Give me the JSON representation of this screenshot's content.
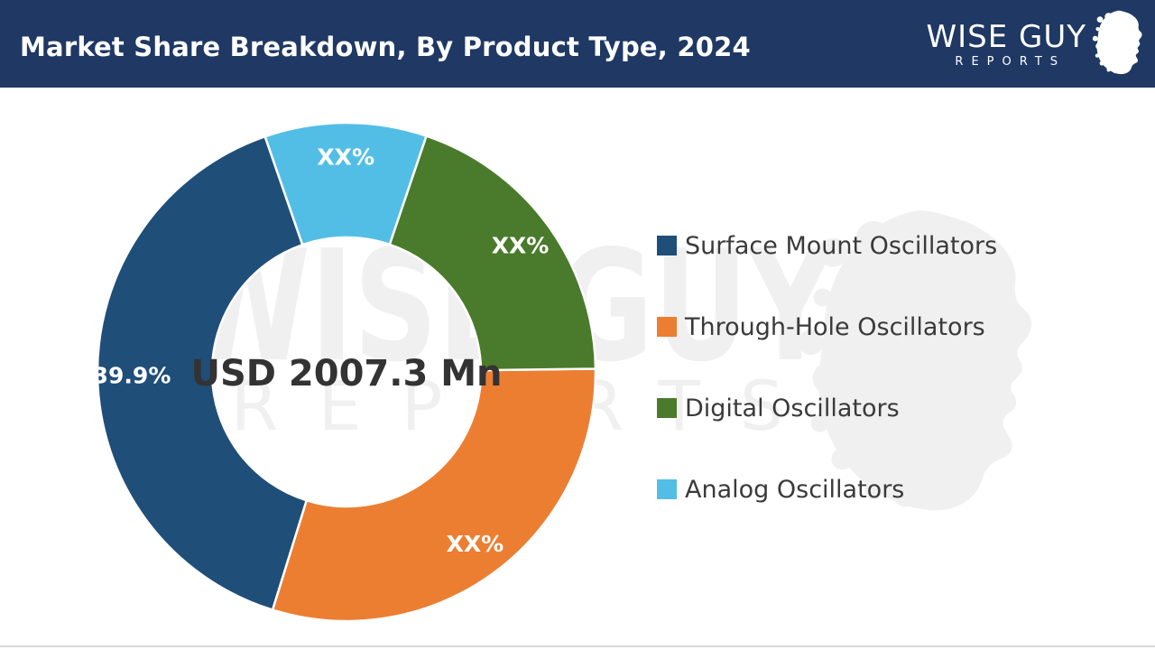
{
  "header": {
    "title": "Market Share Breakdown, By Product Type, 2024",
    "logo": {
      "name": "WISE GUY",
      "sub": "REPORTS"
    }
  },
  "watermark": {
    "name": "WISE GUY",
    "sub": "REPORTS"
  },
  "chart_data": {
    "type": "pie",
    "variant": "donut",
    "title": "Market Share Breakdown, By Product Type, 2024",
    "center_label": "USD 2007.3 Mn",
    "start_angle_deg": 109.1,
    "direction": "counterclockwise",
    "legend_position": "right",
    "inner_radius_ratio": 0.54,
    "segments": [
      {
        "name": "Surface Mount Oscillators",
        "value_pct": 39.9,
        "label": "39.9%",
        "color": "#1f4e79"
      },
      {
        "name": "Through-Hole Oscillators",
        "value_pct": 30.0,
        "label": "XX%",
        "color": "#ec7e32"
      },
      {
        "name": "Digital Oscillators",
        "value_pct": 19.6,
        "label": "XX%",
        "color": "#4a7a2b"
      },
      {
        "name": "Analog Oscillators",
        "value_pct": 10.5,
        "label": "XX%",
        "color": "#52bee6"
      }
    ]
  },
  "colors": {
    "header_bg": "#1f3864",
    "watermark": "#f0f0f0",
    "footer_line": "#d9d9d9",
    "legend_text": "#3a3a3a",
    "center_text": "#333333"
  }
}
